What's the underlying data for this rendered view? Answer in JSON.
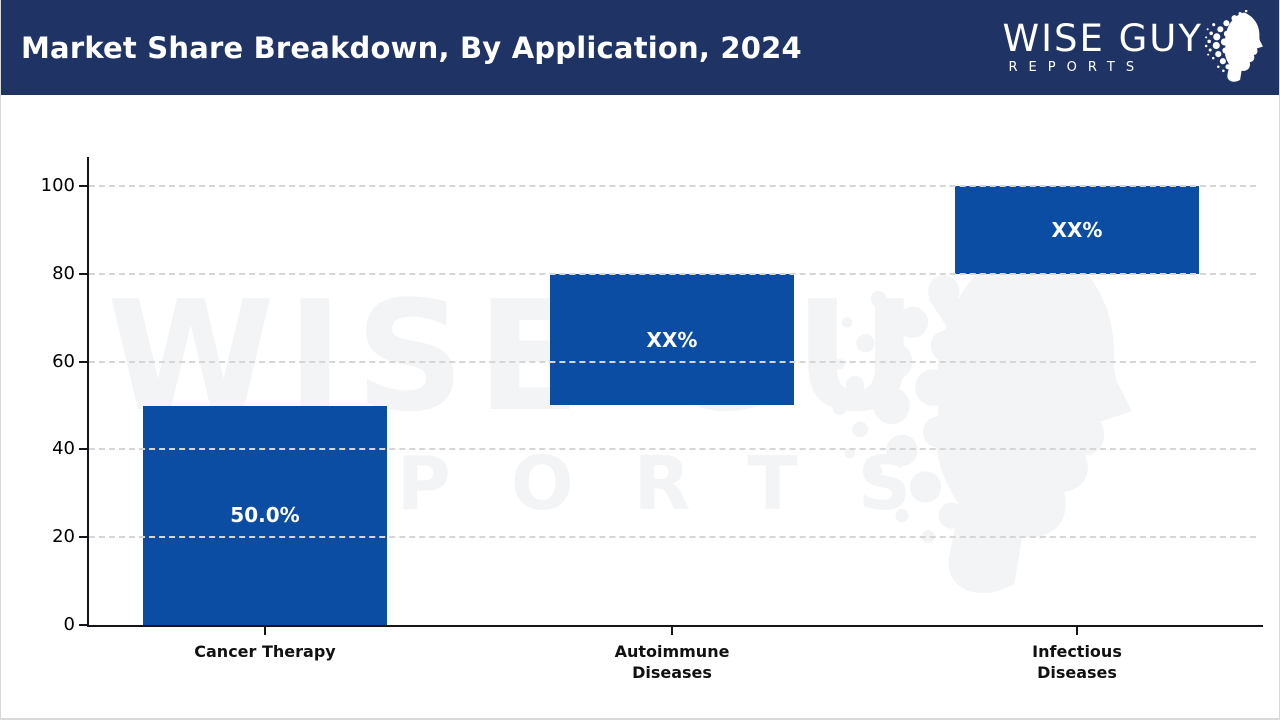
{
  "header": {
    "title": "Market Share Breakdown, By Application, 2024",
    "logo": {
      "line1": "WISE GUY",
      "line2": "REPORTS"
    }
  },
  "watermark": {
    "line1": "WISE GUY",
    "line2": "REPORTS"
  },
  "chart_data": {
    "type": "bar",
    "variant": "floating-waterfall",
    "title": "Market Share Breakdown, By Application, 2024",
    "categories": [
      "Cancer Therapy",
      "Autoimmune Diseases",
      "Infectious Diseases"
    ],
    "categories_lines": [
      [
        "Cancer Therapy"
      ],
      [
        "Autoimmune",
        "Diseases"
      ],
      [
        "Infectious",
        "Diseases"
      ]
    ],
    "segments": [
      {
        "category": "Cancer Therapy",
        "start": 0,
        "end": 50,
        "label": "50.0%"
      },
      {
        "category": "Autoimmune Diseases",
        "start": 50,
        "end": 80,
        "label": "XX%"
      },
      {
        "category": "Infectious Diseases",
        "start": 80,
        "end": 100,
        "label": "XX%"
      }
    ],
    "xlabel": "",
    "ylabel": "",
    "ylim": [
      0,
      100
    ],
    "yticks": [
      0,
      20,
      40,
      60,
      80,
      100
    ],
    "grid": "horizontal-dashed",
    "legend": "none",
    "colors": {
      "bar": "#0b4da2",
      "bar_label": "#ffffff",
      "grid": "#d6d6d6",
      "axis": "#15151a",
      "header_bg": "#1f3465",
      "header_text": "#ffffff",
      "watermark": "#f3f4f6"
    }
  }
}
